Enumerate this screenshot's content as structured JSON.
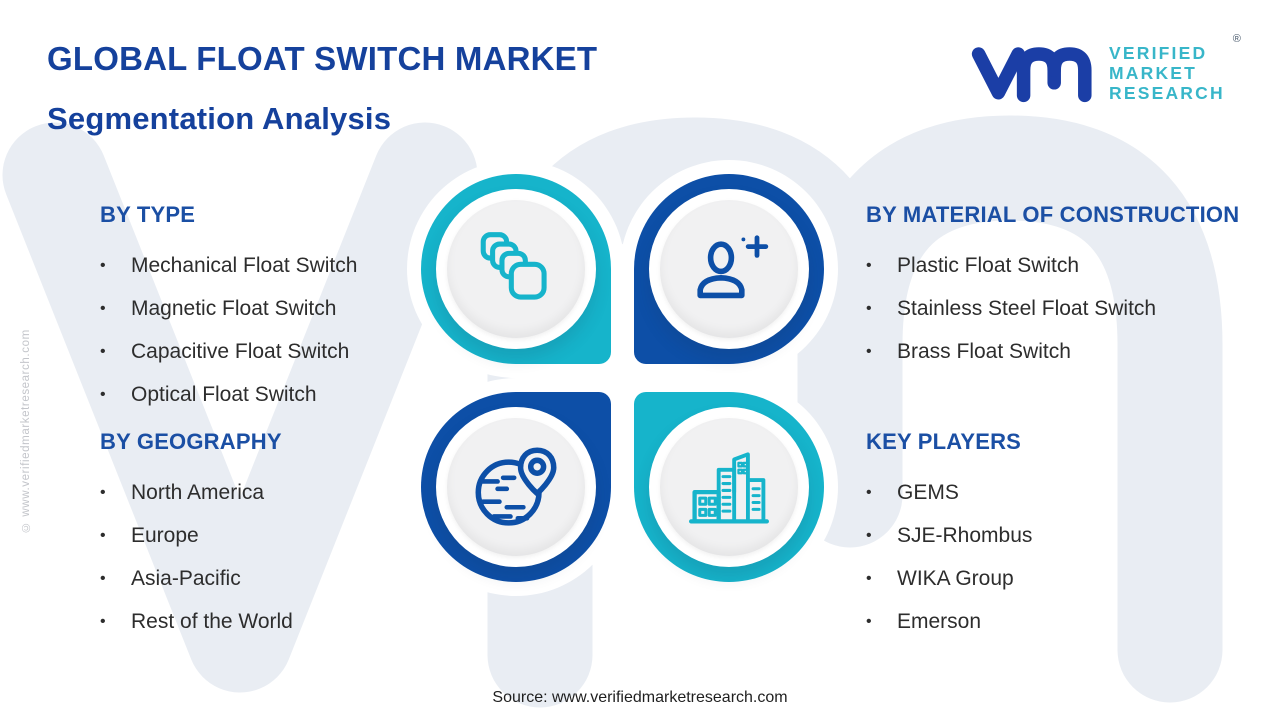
{
  "page": {
    "title_line1": "GLOBAL FLOAT SWITCH MARKET",
    "title_line2": "Segmentation Analysis",
    "source_note": "Source: www.verifiedmarketresearch.com",
    "side_copyright": "© www.verifiedmarketresearch.com",
    "watermark_monogram": "vmr",
    "bullet_char": "•"
  },
  "logo": {
    "monogram": "vmr",
    "line1": "VERIFIED",
    "line2": "MARKET",
    "line3": "RESEARCH",
    "registered_mark": "®"
  },
  "sections": {
    "type": {
      "heading": "BY TYPE",
      "items": [
        "Mechanical Float Switch",
        "Magnetic Float Switch",
        "Capacitive Float Switch",
        "Optical Float Switch"
      ]
    },
    "material": {
      "heading": "BY MATERIAL OF CONSTRUCTION",
      "items": [
        "Plastic Float Switch",
        "Stainless Steel Float Switch",
        "Brass Float Switch"
      ]
    },
    "geography": {
      "heading": "BY GEOGRAPHY",
      "items": [
        "North America",
        "Europe",
        "Asia-Pacific",
        "Rest of the World"
      ]
    },
    "players": {
      "heading": "KEY PLAYERS",
      "items": [
        "GEMS",
        "SJE-Rhombus",
        "WIKA Group",
        "Emerson"
      ]
    }
  },
  "icons": {
    "quad_top_left": "stacked-layers-icon",
    "quad_top_right": "user-plus-icon",
    "quad_bottom_left": "globe-location-icon",
    "quad_bottom_right": "buildings-icon"
  },
  "colors": {
    "teal": "#16b4cb",
    "navy": "#0d4fa7",
    "title_blue": "#15419c",
    "heading_blue": "#1b4fa4",
    "logo_monogram_navy": "#1b3ea6",
    "logo_text_teal": "#38b6c9",
    "body_text": "#2d2d2d",
    "watermark_gray": "#e9edf3",
    "inner_disc_gray": "#f1f1f2"
  }
}
